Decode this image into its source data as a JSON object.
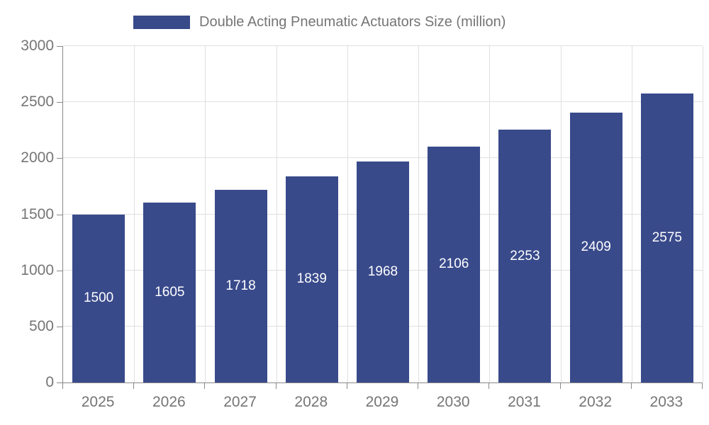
{
  "legend": {
    "label": "Double Acting Pneumatic Actuators Size (million)"
  },
  "chart_data": {
    "type": "bar",
    "title": "Double Acting Pneumatic Actuators Size (million)",
    "categories": [
      "2025",
      "2026",
      "2027",
      "2028",
      "2029",
      "2030",
      "2031",
      "2032",
      "2033"
    ],
    "values": [
      1500,
      1605,
      1718,
      1839,
      1968,
      2106,
      2253,
      2409,
      2575
    ],
    "xlabel": "",
    "ylabel": "",
    "ylim": [
      0,
      3000
    ],
    "yticks": [
      0,
      500,
      1000,
      1500,
      2000,
      2500,
      3000
    ],
    "grid": true,
    "legend_position": "top",
    "value_labels": "inside-center",
    "colors": {
      "bar": "#394A8B",
      "value_label": "#ffffff",
      "axis_text": "#757575",
      "gridline": "#e0e0e0",
      "axis_line": "#888888"
    }
  }
}
